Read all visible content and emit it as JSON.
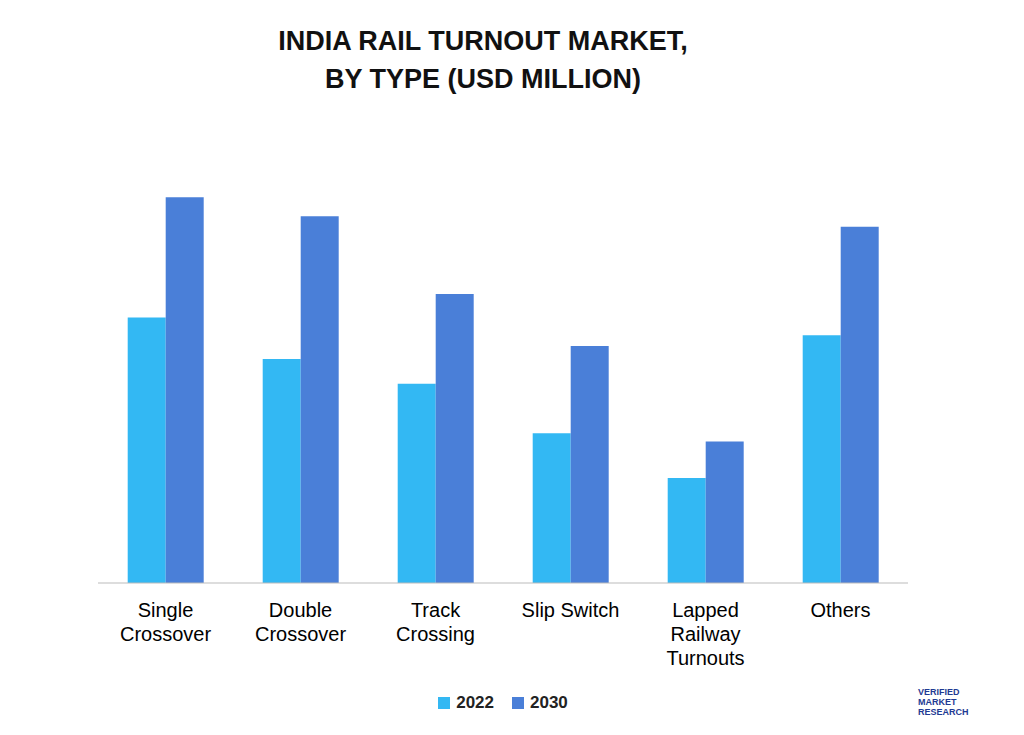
{
  "chart_data": {
    "type": "bar",
    "title": "INDIA RAIL TURNOUT MARKET,\nBY TYPE (USD MILLION)",
    "categories": [
      "Single Crossover",
      "Double Crossover",
      "Track Crossing",
      "Slip Switch",
      "Lapped Railway Turnouts",
      "Others"
    ],
    "series": [
      {
        "name": "2022",
        "color": "#33b8f3",
        "values": [
          225,
          190,
          169,
          127,
          89,
          210
        ]
      },
      {
        "name": "2030",
        "color": "#4a7fd8",
        "values": [
          327,
          311,
          245,
          201,
          120,
          302
        ]
      }
    ],
    "tick_labels": "x",
    "grid": false,
    "legend": "bottom",
    "annotations": [
      "VERIFIED MARKET RESEARCH"
    ]
  }
}
